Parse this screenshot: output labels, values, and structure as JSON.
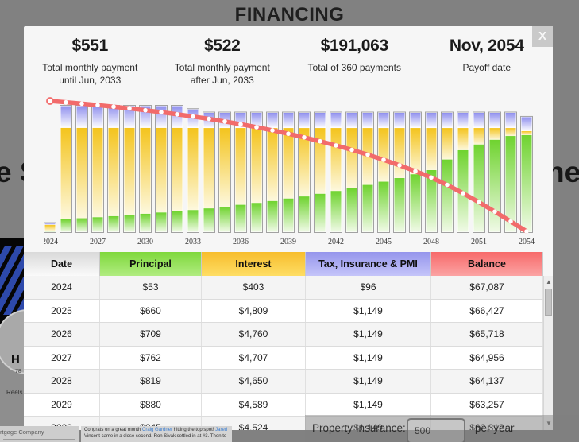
{
  "page": {
    "title": "FINANCING",
    "overlay_color": "#818181",
    "heading_fragment_left": "e S",
    "heading_fragment_right": "nee",
    "facebook": {
      "page_initial": "H",
      "followers_fragment": "78",
      "reels_label": "Reels",
      "category_fragment": "rtgage Company"
    },
    "news": {
      "segments": [
        {
          "text": "Congrats on a great month ",
          "link": false
        },
        {
          "text": "Craig Gardner",
          "link": true
        },
        {
          "text": " hitting the top spot! ",
          "link": false
        },
        {
          "text": "Jared",
          "link": true
        },
        {
          "text": " Vincent came in a close second.  Ron Sivak settled in at #3. Then to",
          "link": false
        }
      ]
    },
    "property_form": {
      "label": "Property Insurance:",
      "value": "500",
      "suffix": "per year"
    }
  },
  "modal": {
    "close_label": "X",
    "stats": [
      {
        "value": "$551",
        "line1": "Total monthly payment",
        "line2": "until Jun, 2033"
      },
      {
        "value": "$522",
        "line1": "Total monthly payment",
        "line2": "after Jun, 2033"
      },
      {
        "value": "$191,063",
        "line1": "Total of 360 payments",
        "line2": ""
      },
      {
        "value": "Nov, 2054",
        "line1": "Payoff date",
        "line2": ""
      }
    ],
    "table": {
      "columns": [
        {
          "label": "Date",
          "color": "#d9d9d9",
          "width": 96
        },
        {
          "label": "Principal",
          "color": "#7fd83c",
          "width": 128
        },
        {
          "label": "Interest",
          "color": "#f7bd2d",
          "width": 131
        },
        {
          "label": "Tax, Insurance & PMI",
          "color": "#9595ec",
          "width": 158
        },
        {
          "label": "Balance",
          "color": "#f76a6a",
          "width": 141
        }
      ],
      "rows": [
        {
          "date": "2024",
          "principal": "$53",
          "interest": "$403",
          "tax": "$96",
          "balance": "$67,087"
        },
        {
          "date": "2025",
          "principal": "$660",
          "interest": "$4,809",
          "tax": "$1,149",
          "balance": "$66,427"
        },
        {
          "date": "2026",
          "principal": "$709",
          "interest": "$4,760",
          "tax": "$1,149",
          "balance": "$65,718"
        },
        {
          "date": "2027",
          "principal": "$762",
          "interest": "$4,707",
          "tax": "$1,149",
          "balance": "$64,956"
        },
        {
          "date": "2028",
          "principal": "$819",
          "interest": "$4,650",
          "tax": "$1,149",
          "balance": "$64,137"
        },
        {
          "date": "2029",
          "principal": "$880",
          "interest": "$4,589",
          "tax": "$1,149",
          "balance": "$63,257"
        },
        {
          "date": "2030",
          "principal": "$945",
          "interest": "$4,524",
          "tax": "$1,149",
          "balance": "$62,312"
        }
      ]
    }
  },
  "chart_data": {
    "type": "bar",
    "note": "stacked annual bars (principal+interest+tax) with balance line overlay",
    "x": [
      2024,
      2025,
      2026,
      2027,
      2028,
      2029,
      2030,
      2031,
      2032,
      2033,
      2034,
      2035,
      2036,
      2037,
      2038,
      2039,
      2040,
      2041,
      2042,
      2043,
      2044,
      2045,
      2046,
      2047,
      2048,
      2049,
      2050,
      2051,
      2052,
      2053,
      2054
    ],
    "xticks": [
      2024,
      2027,
      2030,
      2033,
      2036,
      2039,
      2042,
      2045,
      2048,
      2051,
      2054
    ],
    "series": [
      {
        "name": "Principal",
        "type": "bar-segment-bottom",
        "color": "#6fd32f",
        "values": [
          53,
          660,
          709,
          762,
          819,
          880,
          945,
          1012,
          1070,
          1140,
          1230,
          1320,
          1420,
          1520,
          1620,
          1750,
          1860,
          2000,
          2150,
          2290,
          2470,
          2640,
          2830,
          3030,
          3250,
          3810,
          4300,
          4600,
          4850,
          5050,
          5100
        ]
      },
      {
        "name": "Interest",
        "type": "bar-segment-middle",
        "color": "#f4c41d",
        "values": [
          403,
          4809,
          4760,
          4707,
          4650,
          4589,
          4524,
          4457,
          4399,
          4329,
          4239,
          4149,
          4049,
          3949,
          3849,
          3719,
          3609,
          3469,
          3319,
          3179,
          2999,
          2829,
          2639,
          2439,
          2219,
          1659,
          1169,
          869,
          619,
          419,
          210
        ]
      },
      {
        "name": "Tax, Insurance & PMI",
        "type": "bar-segment-top",
        "color": "#8f8fee",
        "values": [
          96,
          1149,
          1149,
          1149,
          1149,
          1149,
          1149,
          1149,
          1149,
          975,
          800,
          800,
          800,
          800,
          800,
          800,
          800,
          800,
          800,
          800,
          800,
          800,
          800,
          800,
          800,
          800,
          800,
          800,
          800,
          800,
          735
        ]
      },
      {
        "name": "Balance",
        "type": "line",
        "color": "#f26b6b",
        "values": [
          67087,
          66427,
          65718,
          64956,
          64137,
          63257,
          62312,
          61300,
          60230,
          59090,
          57860,
          56540,
          55120,
          53600,
          51980,
          50230,
          48370,
          46370,
          44220,
          41930,
          39460,
          36820,
          33990,
          30960,
          27710,
          23900,
          19600,
          15000,
          10150,
          5100,
          0
        ]
      }
    ],
    "bar_axis_max": 6618,
    "line_axis_max": 67087,
    "legend_position": "none",
    "grid": false
  }
}
